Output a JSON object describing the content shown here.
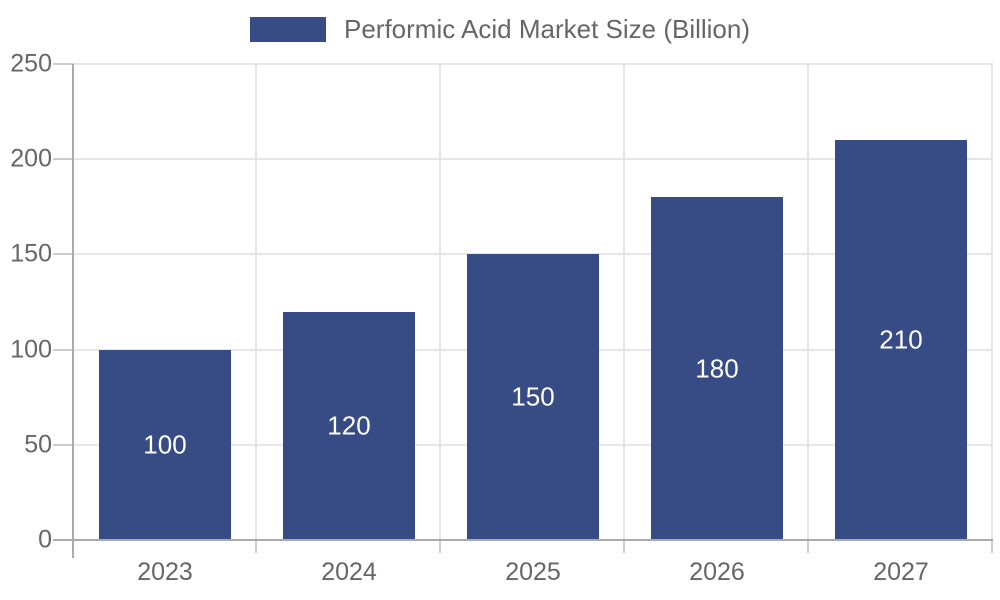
{
  "chart_data": {
    "type": "bar",
    "title": "Performic Acid Market Size (Billion)",
    "legend": {
      "label": "Performic Acid Market Size (Billion)",
      "position": "top-center"
    },
    "categories": [
      "2023",
      "2024",
      "2025",
      "2026",
      "2027"
    ],
    "values": [
      100,
      120,
      150,
      180,
      210
    ],
    "xlabel": "",
    "ylabel": "",
    "ylim": [
      0,
      250
    ],
    "yticks": [
      0,
      50,
      100,
      150,
      200,
      250
    ],
    "grid": true,
    "bar_labels_inside": true,
    "colors": {
      "bar": "#374b85",
      "bar_label": "#ffffff",
      "axis_text": "#666666",
      "grid": "#e6e6e6",
      "tick": "#cccccc",
      "axis_line": "#aaaaaa",
      "background": "#ffffff"
    }
  }
}
